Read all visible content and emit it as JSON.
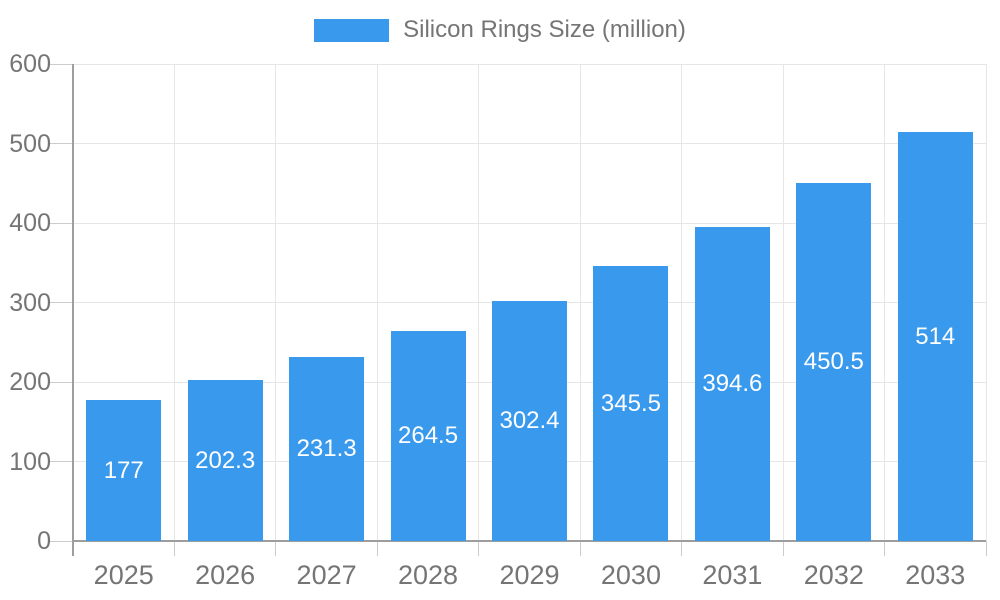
{
  "legend": {
    "label": "Silicon Rings Size (million)"
  },
  "colors": {
    "bar": "#3999ED",
    "axis": "#9e9e9e",
    "tick": "#cccccc",
    "grid": "#e6e6e6",
    "label_text": "#757575",
    "value_text": "#ffffff",
    "background": "#ffffff"
  },
  "chart_data": {
    "type": "bar",
    "title": "Silicon Rings Size (million)",
    "categories": [
      "2025",
      "2026",
      "2027",
      "2028",
      "2029",
      "2030",
      "2031",
      "2032",
      "2033"
    ],
    "series": [
      {
        "name": "Silicon Rings Size (million)",
        "values": [
          177,
          202.3,
          231.3,
          264.5,
          302.4,
          345.5,
          394.6,
          450.5,
          514
        ]
      }
    ],
    "value_labels": [
      "177",
      "202.3",
      "231.3",
      "264.5",
      "302.4",
      "345.5",
      "394.6",
      "450.5",
      "514"
    ],
    "xlabel": "",
    "ylabel": "",
    "ylim": [
      0,
      600
    ],
    "yticks": [
      0,
      100,
      200,
      300,
      400,
      500,
      600
    ],
    "grid": true,
    "legend_position": "top",
    "value_label_position": "inside-center"
  }
}
